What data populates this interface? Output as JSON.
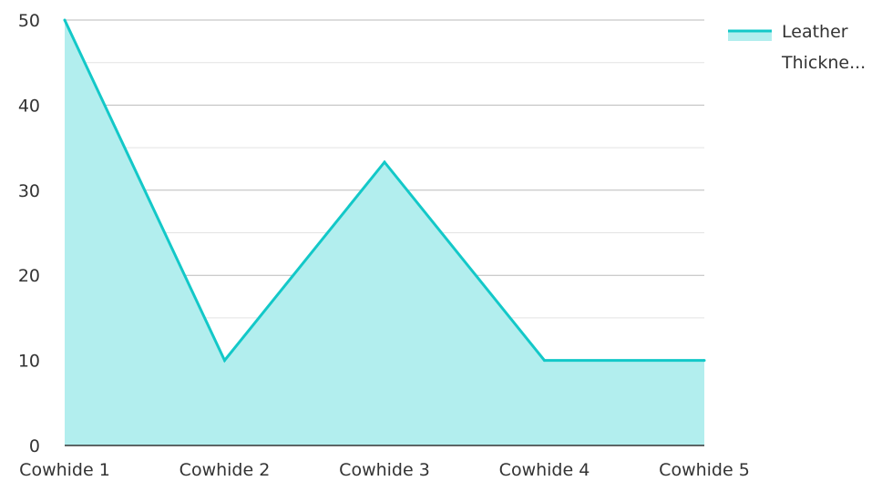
{
  "chart_data": {
    "type": "area",
    "categories": [
      "Cowhide 1",
      "Cowhide 2",
      "Cowhide 3",
      "Cowhide 4",
      "Cowhide 5"
    ],
    "series": [
      {
        "name": "Leather Thickne...",
        "values": [
          50,
          10,
          33.3,
          10,
          10
        ]
      }
    ],
    "ylim": [
      0,
      50
    ],
    "yticks": [
      0,
      10,
      20,
      30,
      40,
      50
    ],
    "grid": true,
    "legend": "top-right",
    "legend_lines": [
      "Leather",
      "Thickne..."
    ],
    "colors": {
      "line": "#13c8c8",
      "fill": "#b2eeee",
      "grid": "#bbbbbb",
      "minor_grid": "#e3e3e3",
      "axis": "#333333"
    }
  }
}
